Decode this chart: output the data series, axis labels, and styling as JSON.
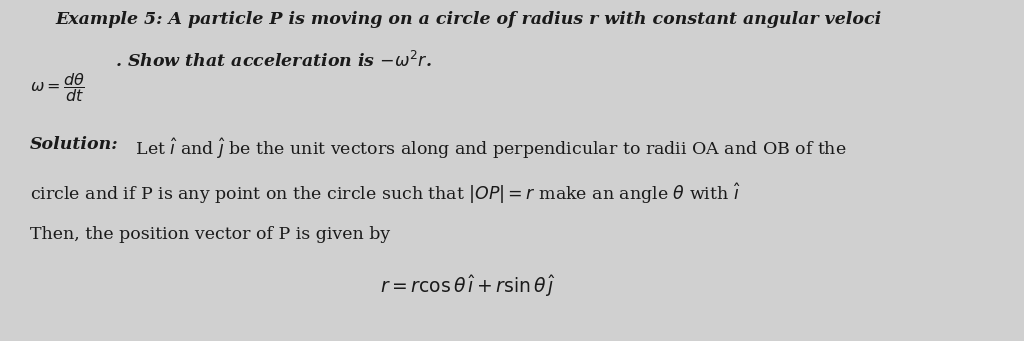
{
  "bg_color_top": "#d0d0d0",
  "bg_color_mid": "#c0c0c0",
  "bg_color_bot": "#b8b8b8",
  "font_color": "#1a1a1a",
  "title_line1": "Example 5: A particle P is moving on a circle of radius r with constant angular veloci",
  "omega_label": "$\\omega = \\dfrac{d\\theta}{dt}$",
  "omega_rest": ". Show that acceleration is $-\\omega^2 r$.",
  "solution_bold": "Solution:",
  "solution_rest": " Let $\\hat{\\imath}$ and $\\hat{\\jmath}$ be the unit vectors along and perpendicular to radii OA and OB of the",
  "line2": "circle and if P is any point on the circle such that $|OP| = r$ make an angle $\\theta$ with $\\hat{\\imath}$",
  "line3": "Then, the position vector of P is given by",
  "formula": "$r = r\\cos\\theta\\,\\hat{\\imath} + r\\sin\\theta\\,\\hat{\\jmath}$",
  "title_fs": 12.5,
  "body_fs": 12.5,
  "formula_fs": 13.5,
  "omega_fs": 11.5
}
